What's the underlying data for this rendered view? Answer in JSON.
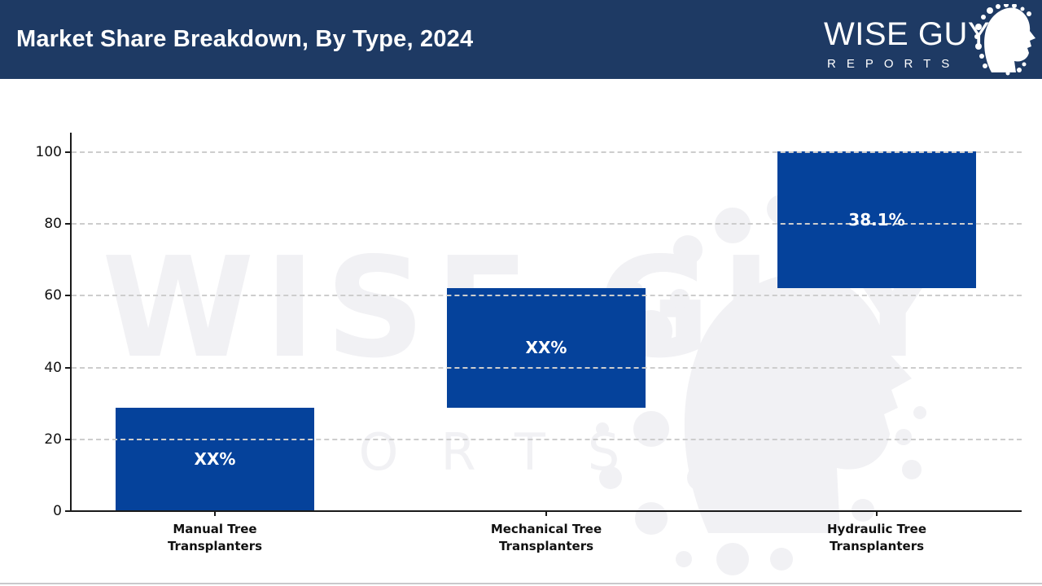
{
  "header": {
    "title": "Market Share Breakdown, By Type, 2024",
    "logo_line1": "WISE GUY",
    "logo_line2": "REPORTS"
  },
  "watermark": {
    "line1": "WISE GUY",
    "line2": "REPORTS"
  },
  "chart_data": {
    "type": "bar",
    "subtype": "floating_segment_bars",
    "title": "Market Share Breakdown, By Type, 2024",
    "categories": [
      [
        "Manual Tree",
        "Transplanters"
      ],
      [
        "Mechanical Tree",
        "Transplanters"
      ],
      [
        "Hydraulic Tree",
        "Transplanters"
      ]
    ],
    "bars": [
      {
        "start": 0,
        "end": 28.6,
        "label": "XX%"
      },
      {
        "start": 28.6,
        "end": 61.9,
        "label": "XX%"
      },
      {
        "start": 61.9,
        "end": 100,
        "label": "38.1%"
      }
    ],
    "ylim": [
      0,
      100
    ],
    "yticks": [
      0,
      20,
      40,
      60,
      80,
      100
    ],
    "xlabel": "",
    "ylabel": "",
    "legend": null,
    "grid": {
      "axis": "y",
      "style": "dashed",
      "color": "#cdcdcd"
    },
    "bar_color": "#05429b",
    "bar_label_color": "#ffffff",
    "header_color": "#1e3a64",
    "watermark_color": "#f1f1f4"
  }
}
